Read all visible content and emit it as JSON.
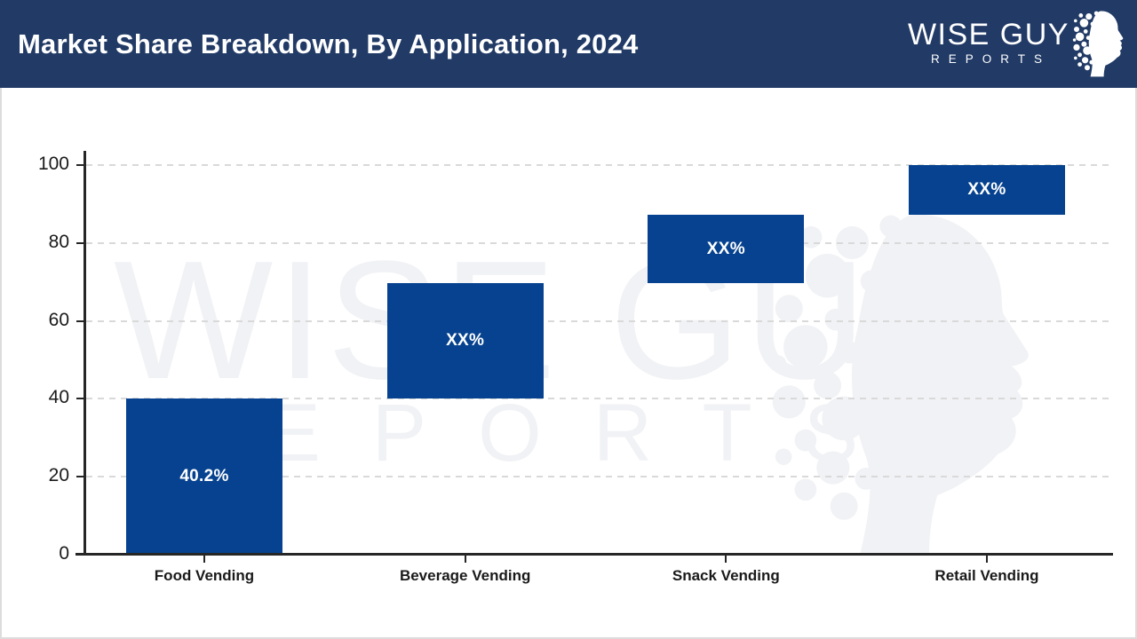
{
  "header": {
    "title": "Market Share Breakdown, By Application, 2024",
    "logo": {
      "line1": "WISE GUY",
      "line2": "REPORTS"
    }
  },
  "watermark": {
    "line1": "WISE GUY",
    "line2": "REPORTS"
  },
  "chart_data": {
    "type": "bar",
    "subtype": "waterfall",
    "title": "Market Share Breakdown, By Application, 2024",
    "categories": [
      "Food Vending",
      "Beverage Vending",
      "Snack Vending",
      "Retail Vending"
    ],
    "series": [
      {
        "name": "Food Vending",
        "start": 0,
        "end": 40.2,
        "label": "40.2%"
      },
      {
        "name": "Beverage Vending",
        "start": 40.2,
        "end": 69.6,
        "label": "XX%"
      },
      {
        "name": "Snack Vending",
        "start": 69.6,
        "end": 87.2,
        "label": "XX%"
      },
      {
        "name": "Retail Vending",
        "start": 87.2,
        "end": 100,
        "label": "XX%"
      }
    ],
    "xlabel": "",
    "ylabel": "",
    "ylim": [
      0,
      100
    ],
    "yticks": [
      0,
      20,
      40,
      60,
      80,
      100
    ],
    "grid": "dashed-horizontal",
    "legend": "none",
    "bar_color": "#06428f",
    "value_label_color": "#ffffff"
  },
  "colors": {
    "header_bg": "#213a66",
    "bar": "#06428f",
    "axis": "#262626",
    "grid": "#d9d9d9",
    "watermark": "#f1f2f5",
    "title_text": "#ffffff",
    "tick_text": "#1a1a1a"
  }
}
